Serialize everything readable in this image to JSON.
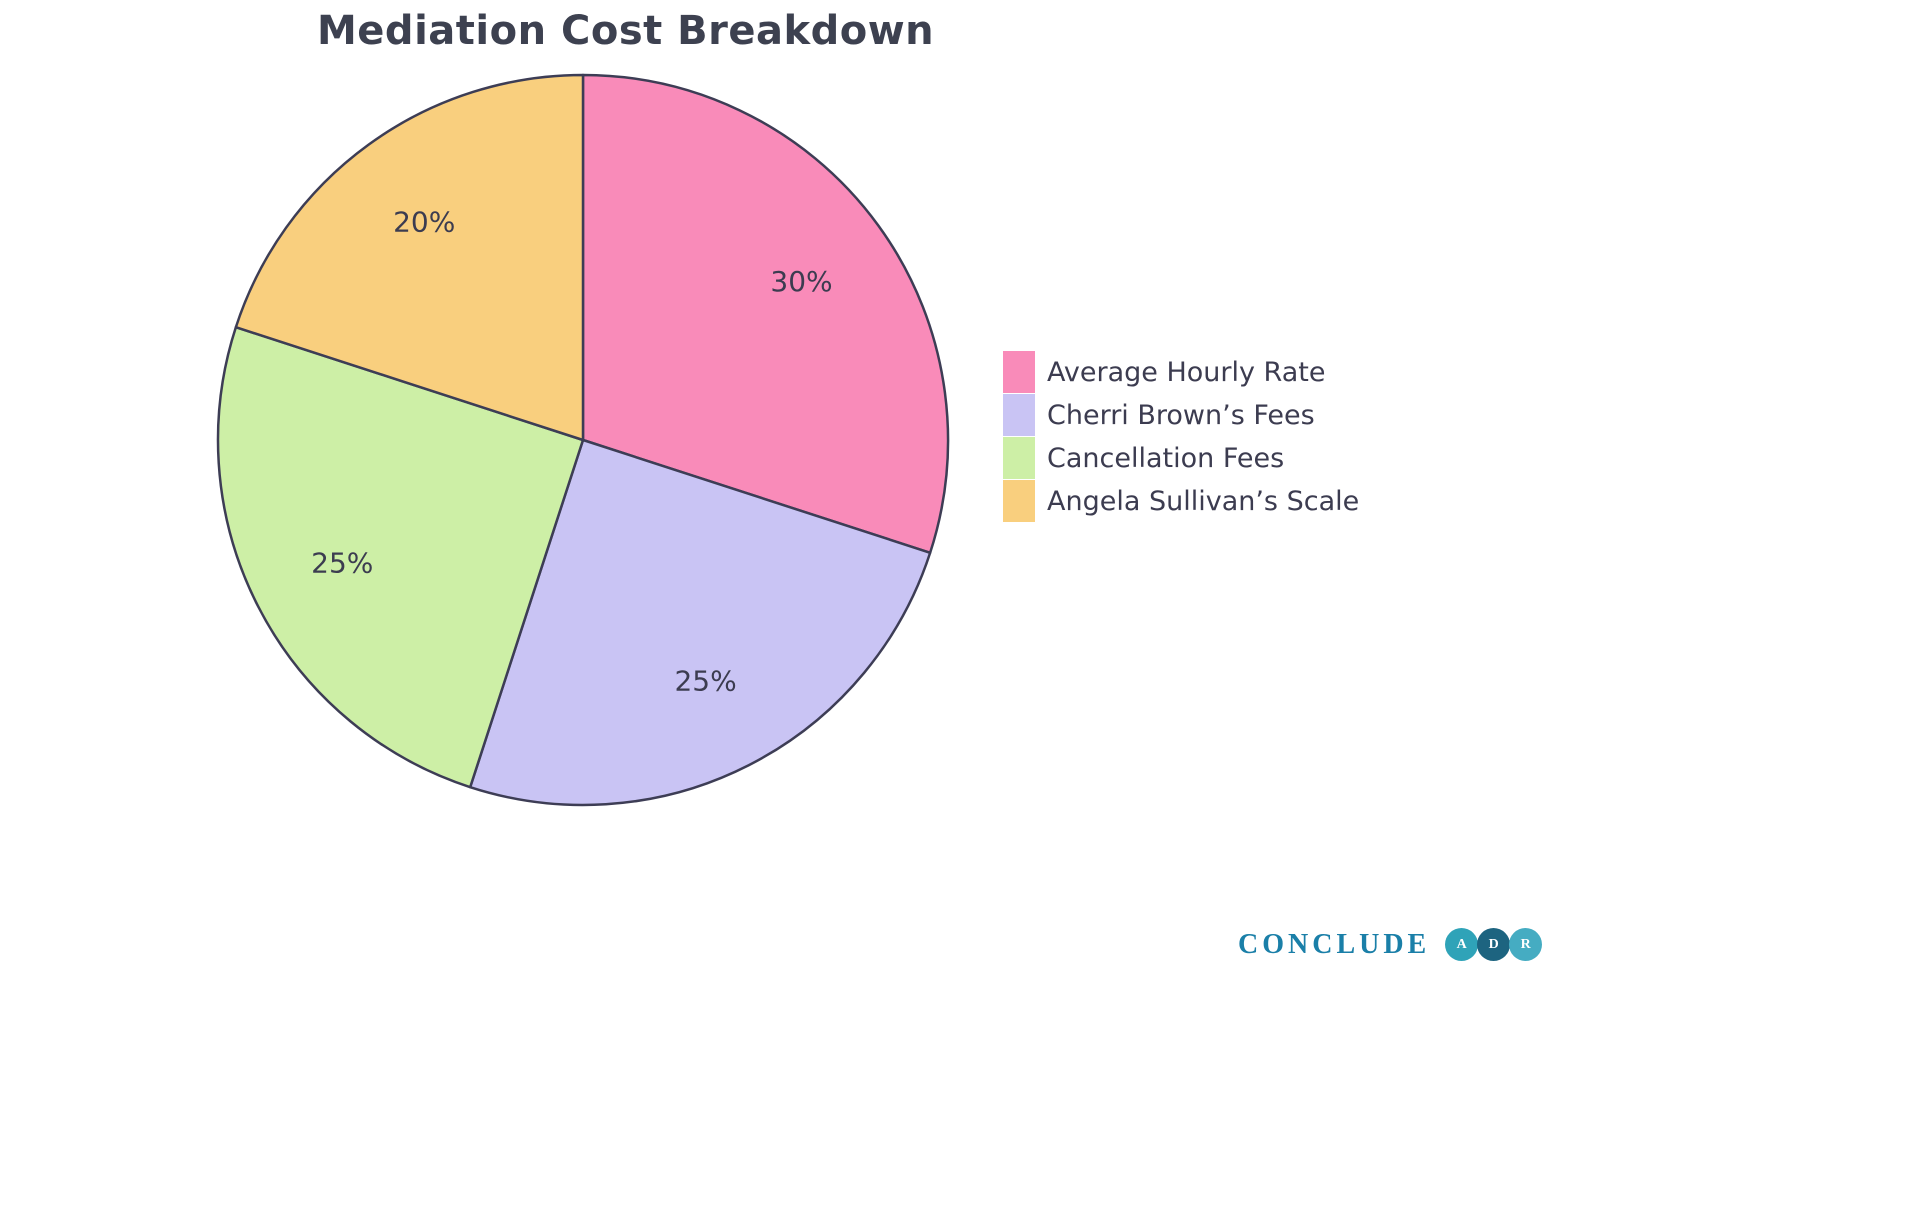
{
  "chart_data": {
    "type": "pie",
    "title": "Mediation Cost Breakdown",
    "labels": [
      "Average Hourly Rate",
      "Cherri Brown’s Fees",
      "Cancellation Fees",
      "Angela Sullivan’s Scale"
    ],
    "values": [
      30,
      25,
      25,
      20
    ],
    "value_labels": [
      "30%",
      "25%",
      "25%",
      "20%"
    ],
    "colors": [
      "#F98BB9",
      "#C9C4F4",
      "#CDEFA6",
      "#F9CF7E"
    ],
    "stroke_color": "#3D3D55",
    "start_angle_deg": 0,
    "direction": "clockwise",
    "legend_position": "right",
    "labels_inside": true
  },
  "logo": {
    "wordmark": "CONCLUDE",
    "wordmark_color": "#1A7FA8",
    "badges": [
      {
        "letter": "A",
        "color": "#2FA3B8"
      },
      {
        "letter": "D",
        "color": "#1D6480"
      },
      {
        "letter": "R",
        "color": "#45ACC2"
      }
    ]
  }
}
